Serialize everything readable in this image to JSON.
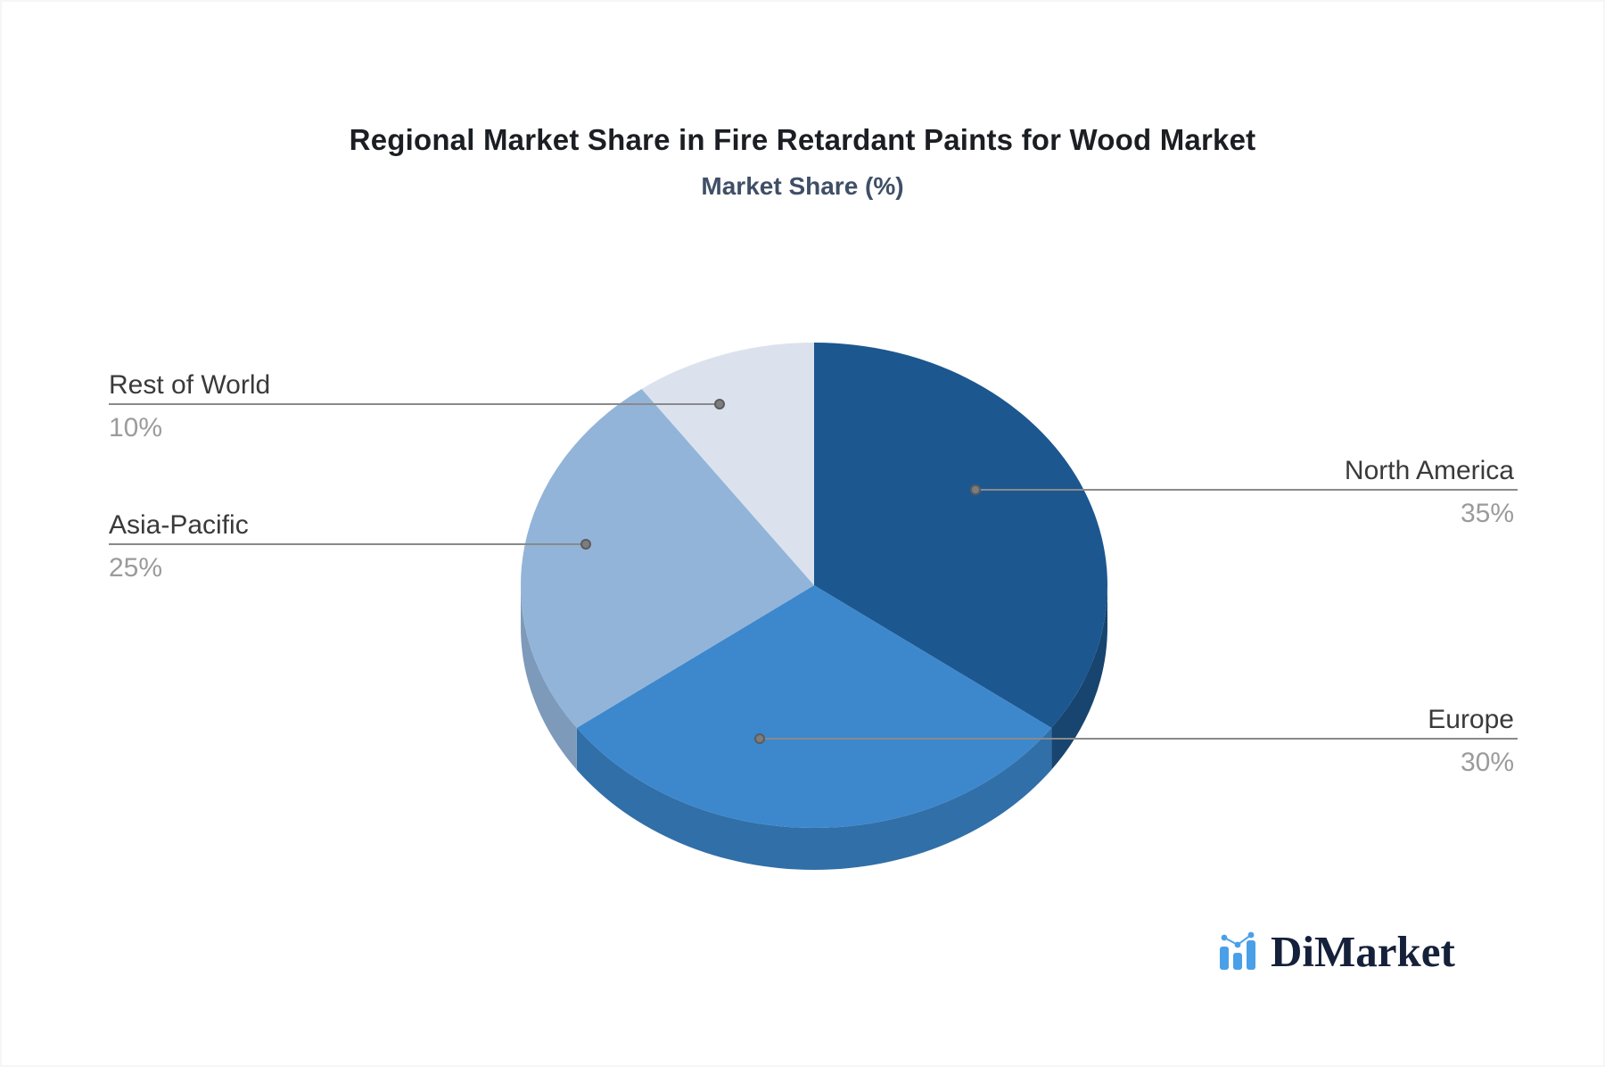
{
  "chart_data": {
    "type": "pie",
    "effect": "3d",
    "title": "Regional Market Share in Fire Retardant Paints for Wood Market",
    "subtitle": "Market Share (%)",
    "unit": "%",
    "start_angle_deg": 0,
    "direction": "clockwise",
    "legend_position": "none",
    "slices": [
      {
        "label": "North America",
        "value": 35,
        "display": "35%",
        "color": "#1c5790",
        "side_color": "#174570",
        "label_side": "right"
      },
      {
        "label": "Europe",
        "value": 30,
        "display": "30%",
        "color": "#3d88cc",
        "side_color": "#316fa8",
        "label_side": "right"
      },
      {
        "label": "Asia-Pacific",
        "value": 25,
        "display": "25%",
        "color": "#92b4d9",
        "side_color": "#7e9aba",
        "label_side": "left"
      },
      {
        "label": "Rest of World",
        "value": 10,
        "display": "10%",
        "color": "#dbe2ee",
        "side_color": "#b9c4d6",
        "label_side": "left"
      }
    ],
    "leader_line_color": "#8a8a8a",
    "marker_color": "#7d7d7d",
    "marker_ring_color": "#5c5c5c",
    "label_color": "#3a3a3a",
    "value_color": "#9b9b9b"
  },
  "branding": {
    "logo_text": "DiMarket",
    "logo_icon": "bar-line-chart-icon",
    "logo_text_color": "#15213a",
    "logo_accent_color": "#4aa0e8"
  }
}
